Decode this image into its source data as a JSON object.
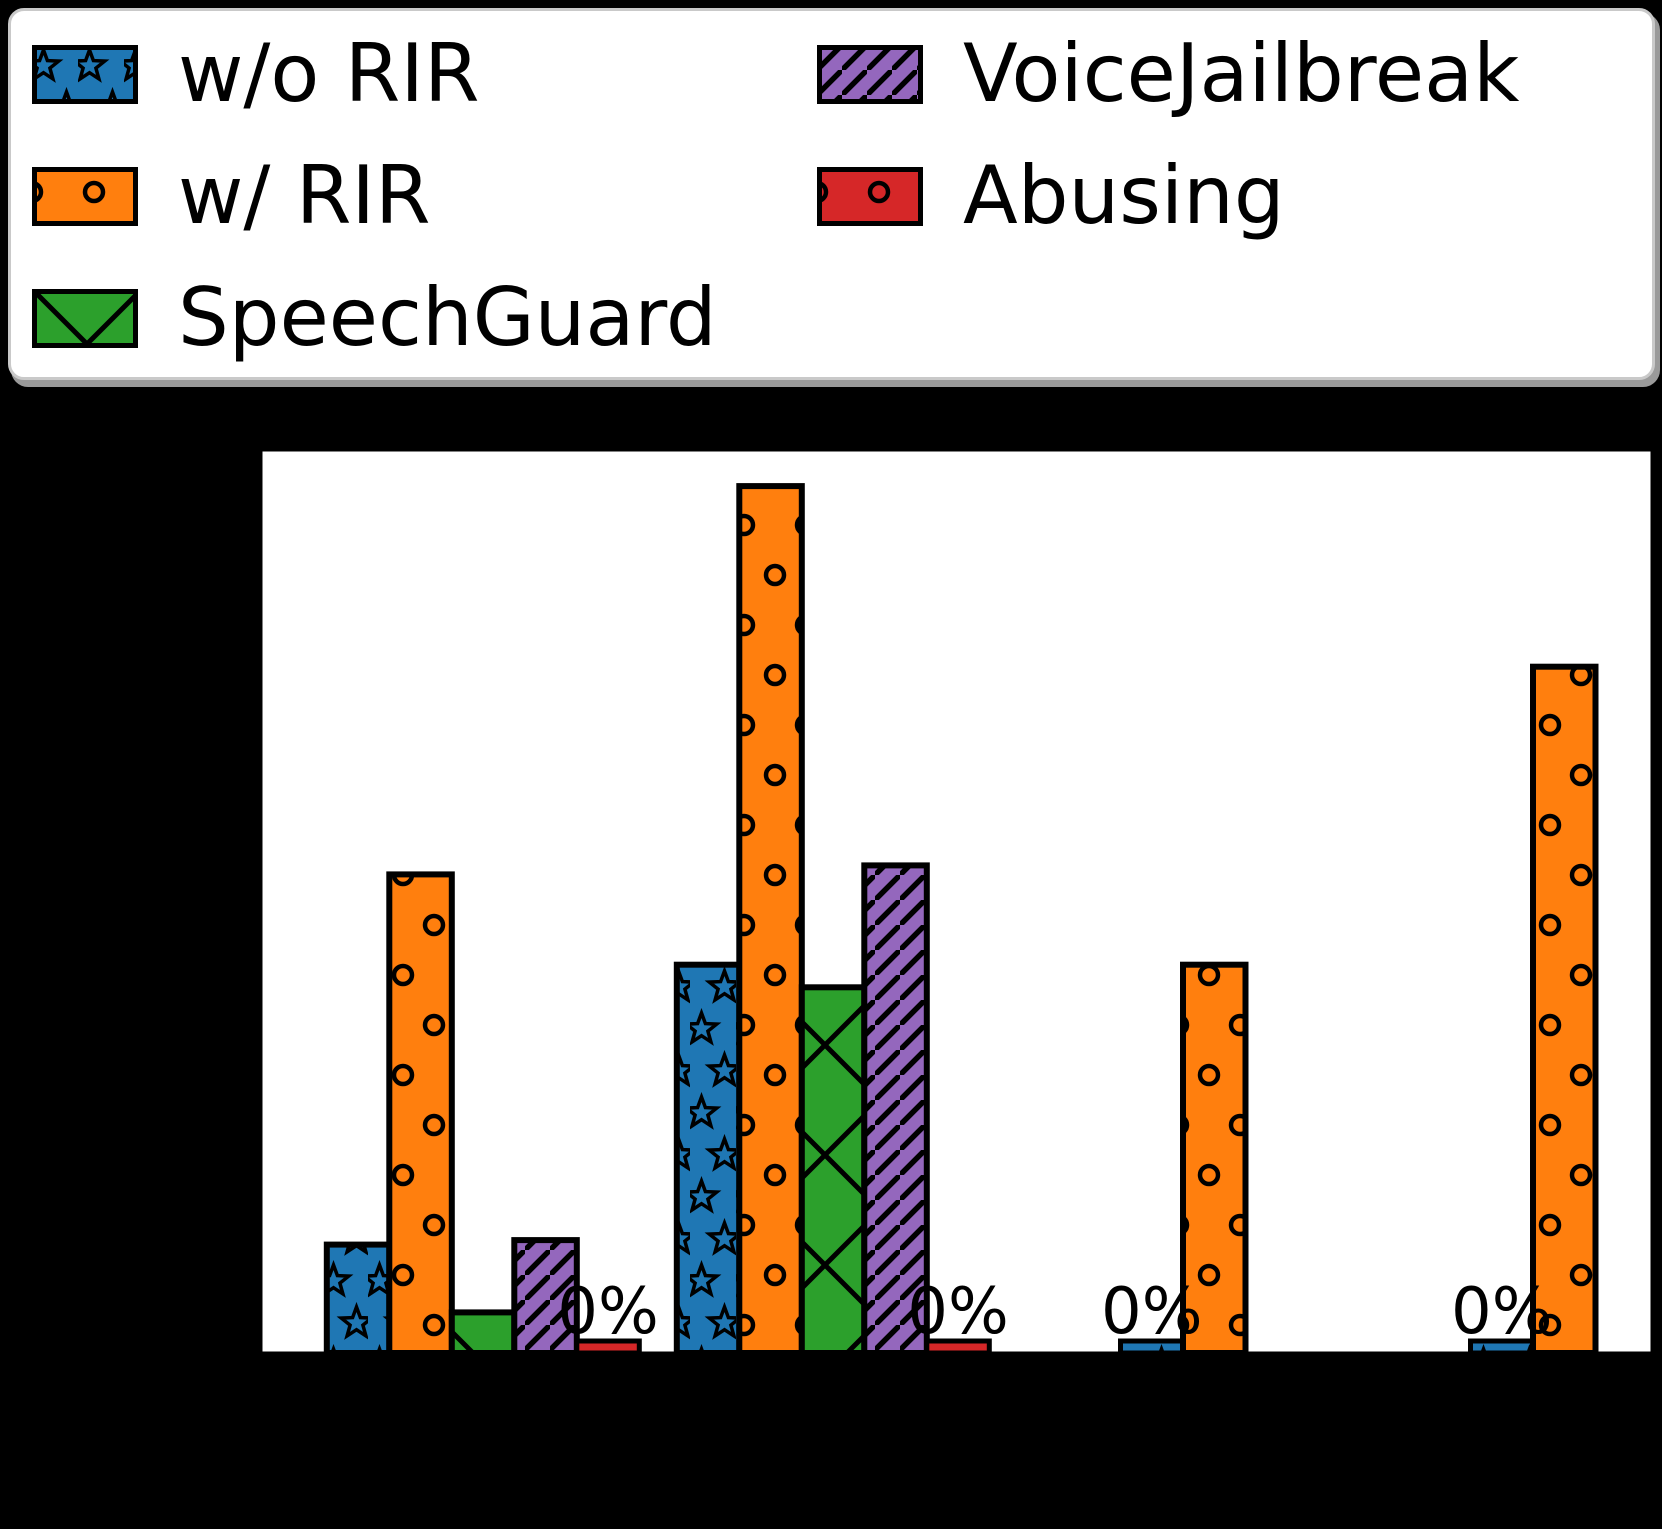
{
  "figure": {
    "background_color": "#000000",
    "plot_background_color": "#ffffff",
    "hatch_edge_color": "#000000"
  },
  "legend": {
    "items": [
      {
        "label": "w/o RIR",
        "color": "#1f77b4",
        "hatch": "star"
      },
      {
        "label": "w/ RIR",
        "color": "#ff7f0e",
        "hatch": "circle"
      },
      {
        "label": "SpeechGuard",
        "color": "#2ca02c",
        "hatch": "cross-diagonal"
      },
      {
        "label": "VoiceJailbreak",
        "color": "#9467bd",
        "hatch": "slash"
      },
      {
        "label": "Abusing",
        "color": "#d62728",
        "hatch": "circle"
      }
    ]
  },
  "chart_data": {
    "type": "bar",
    "categories": [
      "",
      "",
      "",
      ""
    ],
    "series": [
      {
        "name": "w/o RIR",
        "color": "#1f77b4",
        "hatch": "star",
        "values": [
          12,
          43,
          0,
          0
        ]
      },
      {
        "name": "w/ RIR",
        "color": "#ff7f0e",
        "hatch": "circle",
        "values": [
          53,
          96,
          43,
          76
        ]
      },
      {
        "name": "SpeechGuard",
        "color": "#2ca02c",
        "hatch": "cross-diagonal",
        "values": [
          4.5,
          40.5,
          null,
          null
        ]
      },
      {
        "name": "VoiceJailbreak",
        "color": "#9467bd",
        "hatch": "slash",
        "values": [
          12.5,
          54,
          null,
          null
        ]
      },
      {
        "name": "Abusing",
        "color": "#d62728",
        "hatch": "circle",
        "values": [
          0,
          0,
          null,
          null
        ]
      }
    ],
    "zero_label": "0%",
    "ylim": [
      0,
      100
    ],
    "grid": false,
    "legend_position": "top",
    "x_axis_labels_visible": false,
    "y_axis_labels_visible": false
  }
}
